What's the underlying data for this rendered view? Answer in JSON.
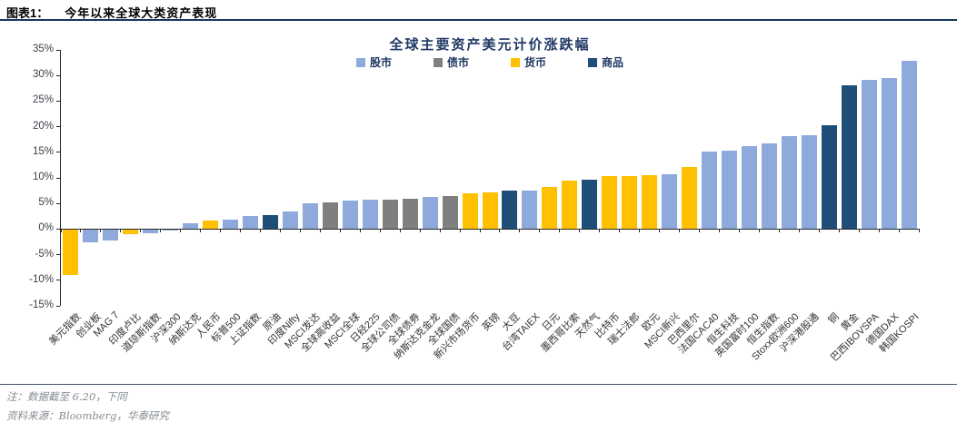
{
  "header": {
    "label": "图表1：",
    "title": "今年以来全球大类资产表现"
  },
  "footnotes": [
    "注：数据截至 6.20，下同",
    "资料来源：Bloomberg，华泰研究"
  ],
  "chart_data": {
    "type": "bar",
    "title": "全球主要资产美元计价涨跌幅",
    "xlabel": "",
    "ylabel": "",
    "ylim": [
      -15,
      35
    ],
    "ytick_step": 5,
    "ytick_labels": [
      "35%",
      "30%",
      "25%",
      "20%",
      "15%",
      "10%",
      "5%",
      "0%",
      "-5%",
      "-10%",
      "-15%"
    ],
    "grid": false,
    "legend_position": "top",
    "legend": [
      {
        "label": "股市",
        "color": "#8EA9DB"
      },
      {
        "label": "债市",
        "color": "#7F7F7F"
      },
      {
        "label": "货币",
        "color": "#FFC000"
      },
      {
        "label": "商品",
        "color": "#1F4E79"
      }
    ],
    "points": [
      {
        "label": "美元指数",
        "value": -8.8,
        "series": "货币"
      },
      {
        "label": "创业板",
        "value": -2.5,
        "series": "股市"
      },
      {
        "label": "MAG 7",
        "value": -2.2,
        "series": "股市"
      },
      {
        "label": "印度卢比",
        "value": -0.9,
        "series": "货币"
      },
      {
        "label": "道琼斯指数",
        "value": -0.8,
        "series": "股市"
      },
      {
        "label": "沪深300",
        "value": -0.1,
        "series": "股市"
      },
      {
        "label": "纳斯达克",
        "value": 1.2,
        "series": "股市"
      },
      {
        "label": "人民币",
        "value": 1.6,
        "series": "货币"
      },
      {
        "label": "标普500",
        "value": 1.8,
        "series": "股市"
      },
      {
        "label": "上证指数",
        "value": 2.5,
        "series": "股市"
      },
      {
        "label": "原油",
        "value": 2.8,
        "series": "商品"
      },
      {
        "label": "印度Nifty",
        "value": 3.5,
        "series": "股市"
      },
      {
        "label": "MSCI发达",
        "value": 5.1,
        "series": "股市"
      },
      {
        "label": "全球高收益",
        "value": 5.2,
        "series": "债市"
      },
      {
        "label": "MSCI全球",
        "value": 5.6,
        "series": "股市"
      },
      {
        "label": "日经225",
        "value": 5.7,
        "series": "股市"
      },
      {
        "label": "全球公司债",
        "value": 5.8,
        "series": "债市"
      },
      {
        "label": "全球债券",
        "value": 5.9,
        "series": "债市"
      },
      {
        "label": "纳斯达克金龙",
        "value": 6.3,
        "series": "股市"
      },
      {
        "label": "全球国债",
        "value": 6.4,
        "series": "债市"
      },
      {
        "label": "新兴市场货币",
        "value": 6.9,
        "series": "货币"
      },
      {
        "label": "英镑",
        "value": 7.1,
        "series": "货币"
      },
      {
        "label": "大豆",
        "value": 7.5,
        "series": "商品"
      },
      {
        "label": "台湾TAIEX",
        "value": 7.6,
        "series": "股市"
      },
      {
        "label": "日元",
        "value": 8.2,
        "series": "货币"
      },
      {
        "label": "墨西哥比索",
        "value": 9.4,
        "series": "货币"
      },
      {
        "label": "天然气",
        "value": 9.7,
        "series": "商品"
      },
      {
        "label": "比特币",
        "value": 10.3,
        "series": "货币"
      },
      {
        "label": "瑞士法郎",
        "value": 10.4,
        "series": "货币"
      },
      {
        "label": "欧元",
        "value": 10.5,
        "series": "货币"
      },
      {
        "label": "MSCI新兴",
        "value": 10.7,
        "series": "股市"
      },
      {
        "label": "巴西里尔",
        "value": 12.1,
        "series": "货币"
      },
      {
        "label": "法国CAC40",
        "value": 15.1,
        "series": "股市"
      },
      {
        "label": "恒生科技",
        "value": 15.3,
        "series": "股市"
      },
      {
        "label": "英国富时100",
        "value": 16.2,
        "series": "股市"
      },
      {
        "label": "恒生指数",
        "value": 16.8,
        "series": "股市"
      },
      {
        "label": "Stoxx欧洲600",
        "value": 18.1,
        "series": "股市"
      },
      {
        "label": "沪深港股通",
        "value": 18.3,
        "series": "股市"
      },
      {
        "label": "铜",
        "value": 20.3,
        "series": "商品"
      },
      {
        "label": "黄金",
        "value": 28.1,
        "series": "商品"
      },
      {
        "label": "巴西IBOVSPA",
        "value": 29.2,
        "series": "股市"
      },
      {
        "label": "德国DAX",
        "value": 29.5,
        "series": "股市"
      },
      {
        "label": "韩国KOSPI",
        "value": 32.8,
        "series": "股市"
      }
    ]
  }
}
